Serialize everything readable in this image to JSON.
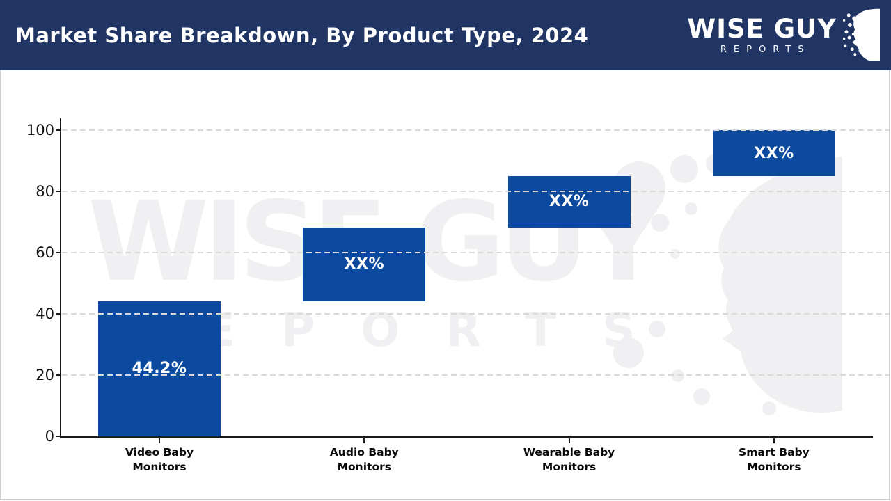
{
  "header": {
    "title": "Market Share Breakdown, By Product Type, 2024",
    "logo": {
      "line1": "WISE GUY",
      "line2": "REPORTS"
    }
  },
  "watermark": {
    "line1": "WISE GUY",
    "line2": "REPORTS"
  },
  "chart_data": {
    "type": "bar",
    "variant": "stacked-waterfall-percent",
    "title": "Market Share Breakdown, By Product Type, 2024",
    "categories": [
      {
        "line1": "Video Baby",
        "line2": "Monitors"
      },
      {
        "line1": "Audio Baby",
        "line2": "Monitors"
      },
      {
        "line1": "Wearable Baby",
        "line2": "Monitors"
      },
      {
        "line1": "Smart Baby",
        "line2": "Monitors"
      }
    ],
    "bars": [
      {
        "start": 0,
        "end": 44.2,
        "label": "44.2%"
      },
      {
        "start": 44.2,
        "end": 68.2,
        "label": "XX%"
      },
      {
        "start": 68.2,
        "end": 85,
        "label": "XX%"
      },
      {
        "start": 85,
        "end": 100,
        "label": "XX%"
      }
    ],
    "yticks": [
      0,
      20,
      40,
      60,
      80,
      100
    ],
    "ylim": [
      0,
      104
    ],
    "xlabel": "",
    "ylabel": "",
    "grid": "horizontal-dashed",
    "legend": "none"
  },
  "colors": {
    "header_bg": "#213564",
    "bar_blue": "#0b4a9e",
    "grid": "#d9d9d9",
    "axis": "#1a1a1a",
    "watermark": "#f0f0f2",
    "frame_border": "#cccccc",
    "text": "#111111",
    "bar_label": "#ffffff"
  }
}
